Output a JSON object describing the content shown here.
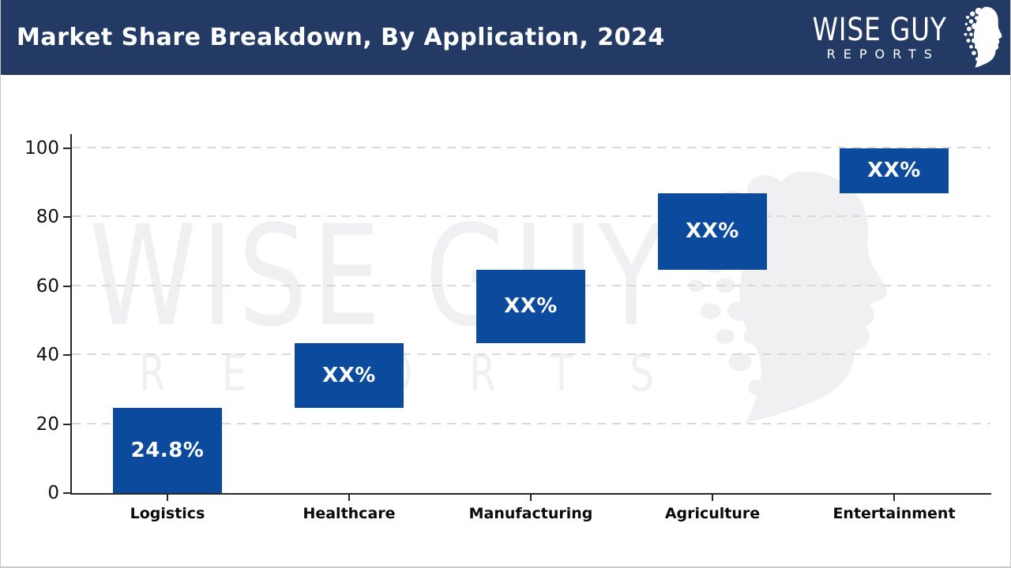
{
  "header": {
    "title": "Market Share Breakdown, By Application, 2024",
    "logo": {
      "brand_top": "WISE GUY",
      "brand_bottom": "REPORTS"
    }
  },
  "watermark": {
    "brand_top": "WISE GUY",
    "brand_bottom": "REPORTS"
  },
  "chart_data": {
    "type": "bar",
    "variant": "waterfall",
    "title": "Market Share Breakdown, By Application, 2024",
    "categories": [
      "Logistics",
      "Healthcare",
      "Manufacturing",
      "Agriculture",
      "Entertainment"
    ],
    "segments": [
      {
        "category": "Logistics",
        "start": 0,
        "end": 24.8,
        "label": "24.8%"
      },
      {
        "category": "Healthcare",
        "start": 24.8,
        "end": 43.5,
        "label": "XX%"
      },
      {
        "category": "Manufacturing",
        "start": 43.5,
        "end": 64.8,
        "label": "XX%"
      },
      {
        "category": "Agriculture",
        "start": 64.8,
        "end": 86.9,
        "label": "XX%"
      },
      {
        "category": "Entertainment",
        "start": 86.9,
        "end": 100,
        "label": "XX%"
      }
    ],
    "yticks": [
      0,
      20,
      40,
      60,
      80,
      100
    ],
    "ylim": [
      0,
      104
    ],
    "xlabel": "",
    "ylabel": "",
    "grid": true,
    "legend": false,
    "bar_color": "#0c4a9e",
    "bar_label_color": "#ffffff"
  },
  "colors": {
    "header_bg": "#223a64",
    "header_text": "#ffffff",
    "bar": "#0c4a9e",
    "axis": "#262626",
    "gridline": "#d9d9d9",
    "tick_text": "#111111",
    "watermark": "#f0f0f3",
    "border": "#c9c9c9"
  }
}
